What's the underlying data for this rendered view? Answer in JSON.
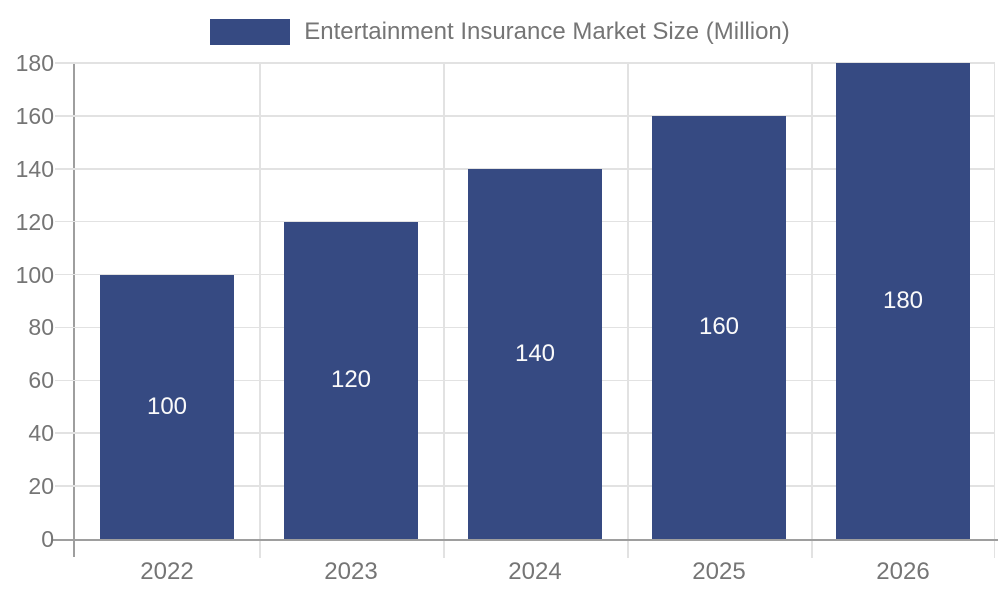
{
  "legend": {
    "label": "Entertainment Insurance Market Size (Million)"
  },
  "colors": {
    "bar": "#364a82",
    "grid": "#e2e2e2",
    "axis": "#9e9e9e",
    "tick_text": "#757575",
    "value_label": "#fafafa",
    "background": "#ffffff"
  },
  "chart_data": {
    "type": "bar",
    "title": "Entertainment Insurance Market Size (Million)",
    "categories": [
      "2022",
      "2023",
      "2024",
      "2025",
      "2026"
    ],
    "values": [
      100,
      120,
      140,
      160,
      180
    ],
    "bar_labels": [
      "100",
      "120",
      "140",
      "160",
      "180"
    ],
    "series": [
      {
        "name": "Entertainment Insurance Market Size (Million)",
        "values": [
          100,
          120,
          140,
          160,
          180
        ]
      }
    ],
    "xlabel": "",
    "ylabel": "",
    "ylim": [
      0,
      180
    ],
    "yticks": [
      0,
      20,
      40,
      60,
      80,
      100,
      120,
      140,
      160,
      180
    ],
    "grid": true,
    "legend_position": "top"
  }
}
